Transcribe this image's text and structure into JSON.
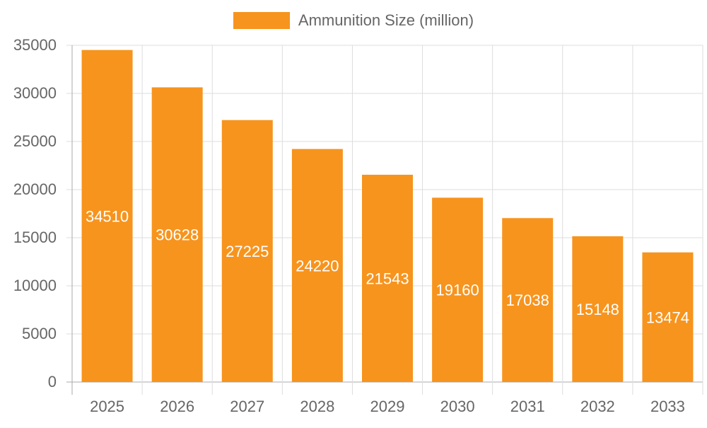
{
  "chart_data": {
    "type": "bar",
    "categories": [
      "2025",
      "2026",
      "2027",
      "2028",
      "2029",
      "2030",
      "2031",
      "2032",
      "2033"
    ],
    "series": [
      {
        "name": "Ammunition Size (million)",
        "values": [
          34510,
          30628,
          27225,
          24220,
          21543,
          19160,
          17038,
          15148,
          13474
        ],
        "color": "#f7941d"
      }
    ],
    "ylim": [
      0,
      35000
    ],
    "yticks": [
      0,
      5000,
      10000,
      15000,
      20000,
      25000,
      30000,
      35000
    ],
    "grid": true,
    "legend_position": "top-center",
    "data_labels": true
  }
}
